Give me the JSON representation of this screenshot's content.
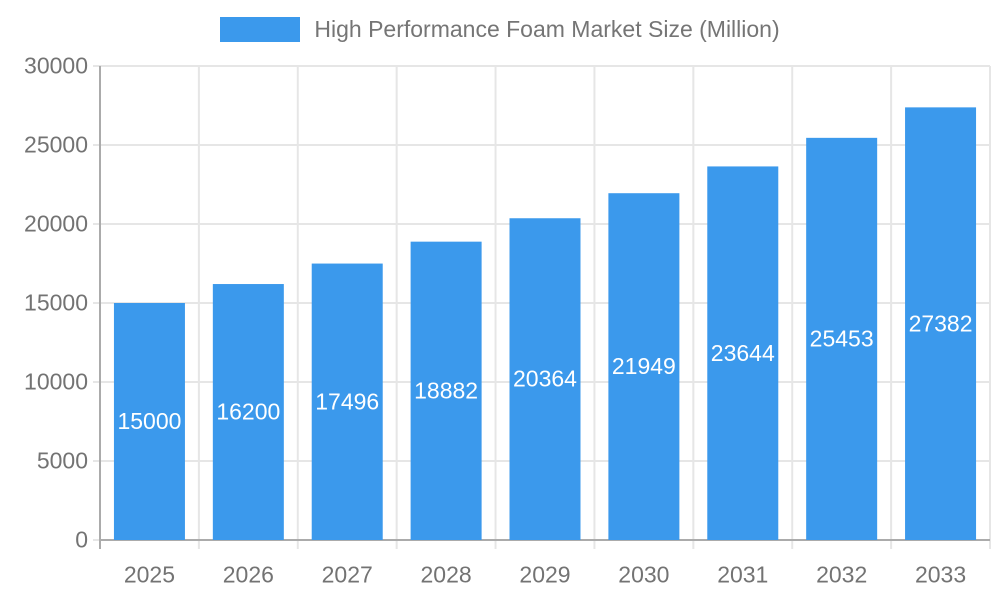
{
  "legend": {
    "label": "High Performance Foam Market Size (Million)",
    "swatch_color": "#3B99EC"
  },
  "chart_data": {
    "type": "bar",
    "title": "High Performance Foam Market Size (Million)",
    "series_name": "High Performance Foam Market Size (Million)",
    "categories": [
      "2025",
      "2026",
      "2027",
      "2028",
      "2029",
      "2030",
      "2031",
      "2032",
      "2033"
    ],
    "values": [
      15000,
      16200,
      17496,
      18882,
      20364,
      21949,
      23644,
      25453,
      27382
    ],
    "xlabel": "",
    "ylabel": "",
    "ylim": [
      0,
      30000
    ],
    "yticks": [
      0,
      5000,
      10000,
      15000,
      20000,
      25000,
      30000
    ],
    "grid": true,
    "legend_position": "top",
    "colors": {
      "bar": "#3B99EC",
      "bar_label": "#FFFFFF",
      "gridline": "#E6E6E6",
      "axis_line": "#ABABAB",
      "tick_text": "#737373",
      "legend_text": "#757575"
    }
  }
}
